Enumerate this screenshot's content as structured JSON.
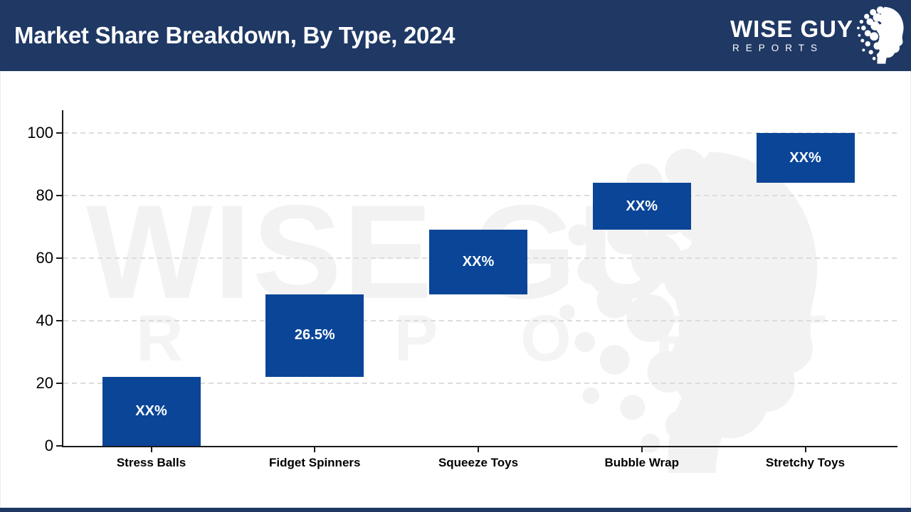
{
  "header": {
    "title": "Market Share Breakdown, By Type, 2024"
  },
  "logo": {
    "line1": "WISE GUY",
    "line2": "REPORTS"
  },
  "watermark": {
    "line1": "WISE GUY",
    "line2": "R E P O R T S"
  },
  "colors": {
    "header_bg": "#1f3864",
    "footer_bg": "#1f3864",
    "bar": "#0a4598",
    "grid": "#dcdcdc",
    "axis": "#1a1a1a",
    "bar_label_text": "#ffffff",
    "watermark": "#f2f2f2"
  },
  "chart_data": {
    "type": "bar",
    "subtype": "waterfall-floating-bars",
    "title": "Market Share Breakdown, By Type, 2024",
    "categories": [
      "Stress Balls",
      "Fidget Spinners",
      "Squeeze Toys",
      "Bubble Wrap",
      "Stretchy Toys"
    ],
    "values": [
      22,
      26.5,
      20.5,
      15,
      16
    ],
    "segment_ranges": [
      [
        0,
        22
      ],
      [
        22,
        48.5
      ],
      [
        48.5,
        69
      ],
      [
        69,
        84
      ],
      [
        84,
        100
      ]
    ],
    "bar_labels": [
      "XX%",
      "26.5%",
      "XX%",
      "XX%",
      "XX%"
    ],
    "y_ticks": [
      0,
      20,
      40,
      60,
      80,
      100
    ],
    "ylim": [
      0,
      105
    ],
    "xlabel": "",
    "ylabel": "",
    "grid": "horizontal-dashed",
    "legend": "none"
  }
}
